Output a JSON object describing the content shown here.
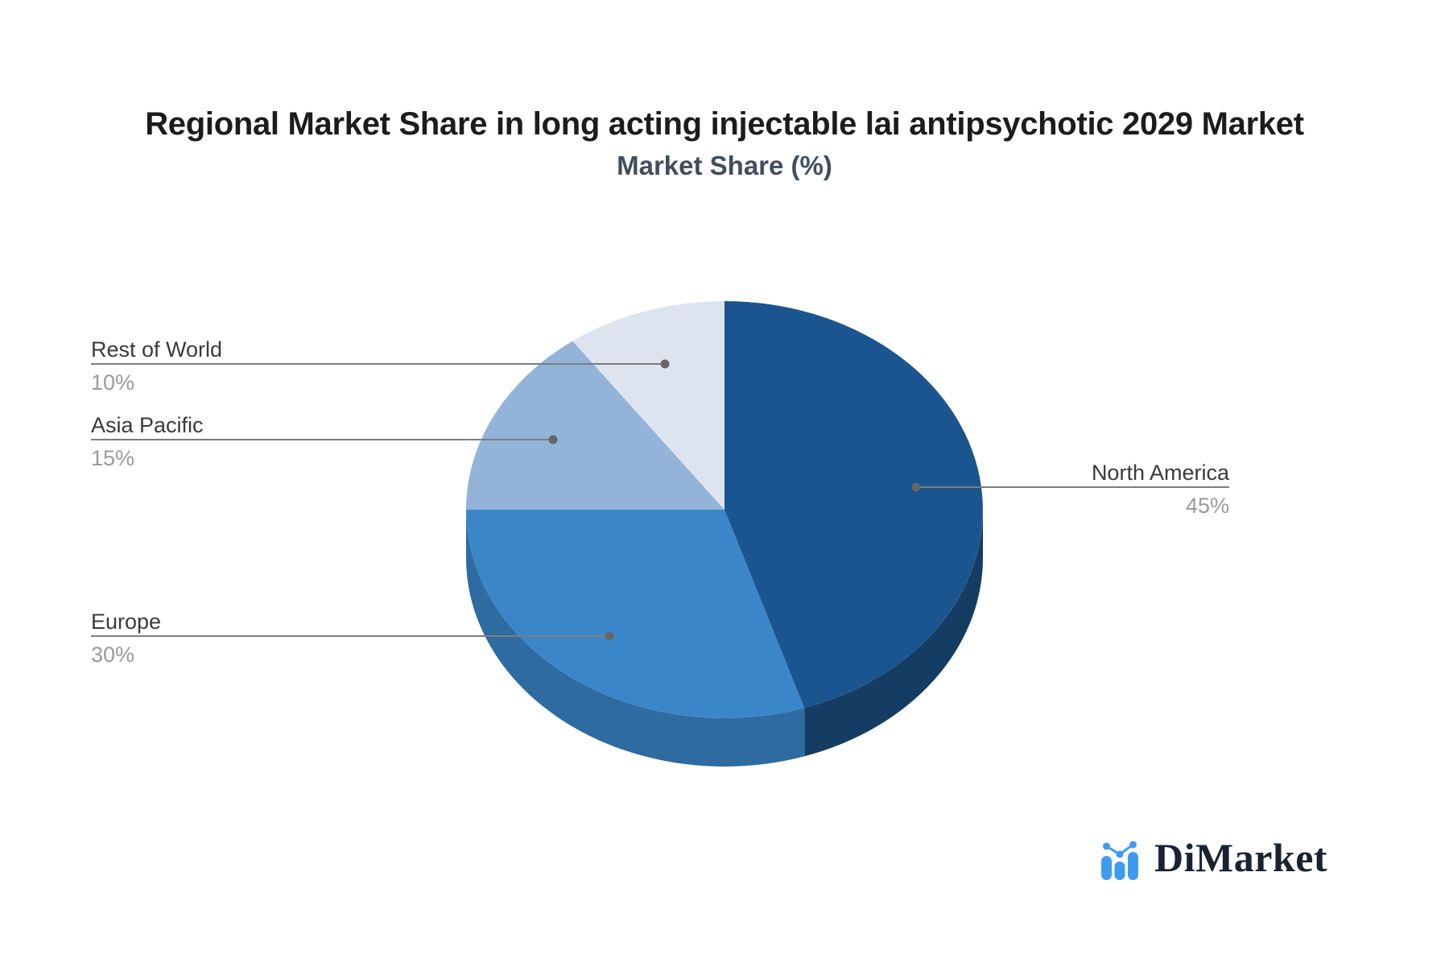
{
  "header": {
    "title": "Regional Market Share in long acting injectable lai antipsychotic 2029 Market",
    "subtitle": "Market Share (%)"
  },
  "chart_data": {
    "type": "pie",
    "title": "Regional Market Share in long acting injectable lai antipsychotic 2029 Market",
    "subtitle": "Market Share (%)",
    "unit": "%",
    "style": "3d-pie",
    "start_angle": "12-oclock-clockwise",
    "legend_position": "outside-callouts-with-leader-lines",
    "slices": [
      {
        "label": "North America",
        "value": 45,
        "display": "45%",
        "color": "#1a5590",
        "side_color": "#153c62"
      },
      {
        "label": "Europe",
        "value": 30,
        "display": "30%",
        "color": "#3a86c8",
        "side_color": "#2d6ba1"
      },
      {
        "label": "Asia Pacific",
        "value": 15,
        "display": "15%",
        "color": "#93b4d8",
        "side_color": "#6d89a8"
      },
      {
        "label": "Rest of World",
        "value": 10,
        "display": "10%",
        "color": "#dde4ef",
        "side_color": "#aab4c4"
      }
    ]
  },
  "annotation_colors": {
    "leader_line": "#7d7d7d",
    "leader_dot": "#666666",
    "label_text": "#3a3a3a",
    "percent_text": "#9a9a9a"
  },
  "branding": {
    "logo_text": "DiMarket",
    "logo_icon": "bar-chart-trend-icon",
    "logo_icon_color": "#3f9bf2",
    "logo_text_color": "#182232"
  }
}
